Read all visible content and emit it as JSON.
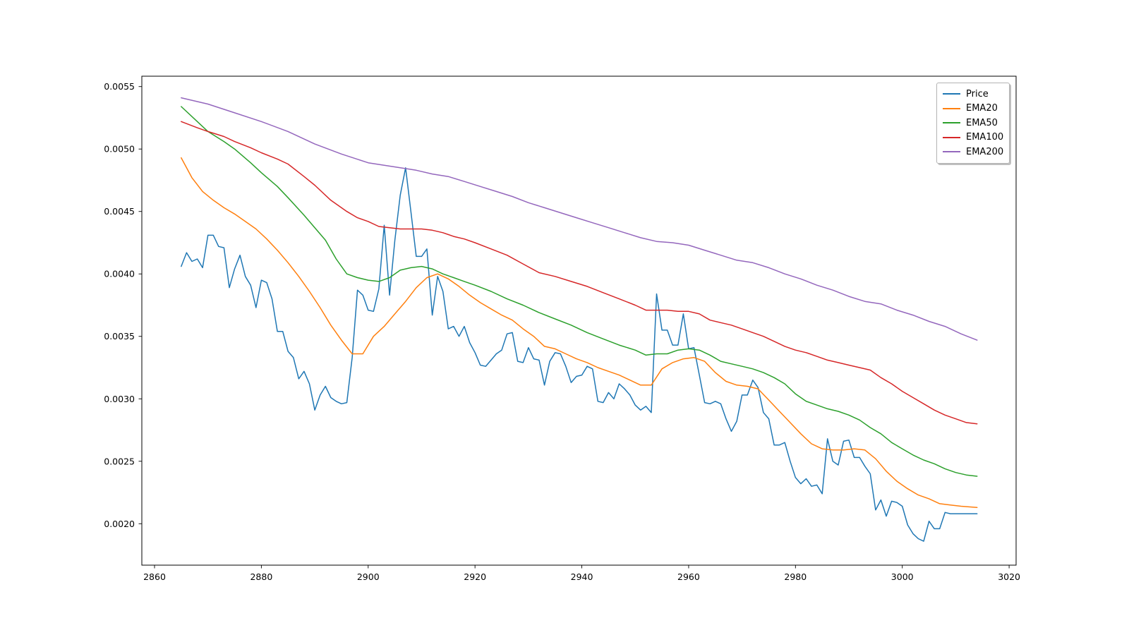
{
  "figure": {
    "background": "#ffffff",
    "axes": {
      "x_tick_labels": [
        "2860",
        "2880",
        "2900",
        "2920",
        "2940",
        "2960",
        "2980",
        "3000",
        "3020"
      ],
      "x_ticks": [
        2860,
        2880,
        2900,
        2920,
        2940,
        2960,
        2980,
        3000,
        3020
      ],
      "y_tick_labels": [
        "0.0020",
        "0.0025",
        "0.0030",
        "0.0035",
        "0.0040",
        "0.0045",
        "0.0050",
        "0.0055"
      ],
      "y_ticks": [
        0.002,
        0.0025,
        0.003,
        0.0035,
        0.004,
        0.0045,
        0.005,
        0.0055
      ],
      "grid": "off",
      "spine_color": "#000000"
    },
    "legend": {
      "position": "upper right",
      "entries": [
        {
          "label": "Price",
          "color": "#1f77b4"
        },
        {
          "label": "EMA20",
          "color": "#ff7f0e"
        },
        {
          "label": "EMA50",
          "color": "#2ca02c"
        },
        {
          "label": "EMA100",
          "color": "#d62728"
        },
        {
          "label": "EMA200",
          "color": "#9467bd"
        }
      ]
    }
  },
  "chart_data": {
    "type": "line",
    "title": "",
    "xlabel": "",
    "ylabel": "",
    "xlim": [
      2857.6,
      3021.4
    ],
    "ylim": [
      0.00167,
      0.005583
    ],
    "legend_position": "upper right",
    "grid": false,
    "series": [
      {
        "name": "Price",
        "color": "#1f77b4",
        "x_start": 2865,
        "x_step": 1,
        "values": [
          0.00406,
          0.00417,
          0.0041,
          0.00412,
          0.00405,
          0.00431,
          0.00431,
          0.00422,
          0.00421,
          0.00389,
          0.00404,
          0.00415,
          0.00398,
          0.00391,
          0.00373,
          0.00395,
          0.00393,
          0.0038,
          0.00354,
          0.00354,
          0.00338,
          0.00333,
          0.00316,
          0.00322,
          0.00312,
          0.00291,
          0.00303,
          0.0031,
          0.00301,
          0.00298,
          0.00296,
          0.00297,
          0.00333,
          0.00387,
          0.00383,
          0.00371,
          0.0037,
          0.00388,
          0.00439,
          0.00383,
          0.00427,
          0.00463,
          0.00485,
          0.0045,
          0.00414,
          0.00414,
          0.0042,
          0.00367,
          0.00398,
          0.00386,
          0.00356,
          0.00358,
          0.0035,
          0.00358,
          0.00345,
          0.00337,
          0.00327,
          0.00326,
          0.00331,
          0.00336,
          0.00339,
          0.00352,
          0.00353,
          0.0033,
          0.00329,
          0.00341,
          0.00332,
          0.00331,
          0.00311,
          0.0033,
          0.00337,
          0.00336,
          0.00326,
          0.00313,
          0.00318,
          0.00319,
          0.00326,
          0.00324,
          0.00298,
          0.00297,
          0.00305,
          0.003,
          0.00312,
          0.00308,
          0.00303,
          0.00295,
          0.00291,
          0.00294,
          0.00289,
          0.00384,
          0.00355,
          0.00355,
          0.00343,
          0.00343,
          0.00368,
          0.0034,
          0.00341,
          0.00319,
          0.00297,
          0.00296,
          0.00298,
          0.00296,
          0.00284,
          0.00274,
          0.00282,
          0.00303,
          0.00303,
          0.00315,
          0.00309,
          0.00289,
          0.00284,
          0.00263,
          0.00263,
          0.00265,
          0.0025,
          0.00237,
          0.00232,
          0.00236,
          0.0023,
          0.00231,
          0.00224,
          0.00268,
          0.0025,
          0.00247,
          0.00266,
          0.00267,
          0.00253,
          0.00253,
          0.00246,
          0.0024,
          0.00211,
          0.00219,
          0.00206,
          0.00218,
          0.00217,
          0.00214,
          0.00199,
          0.00192,
          0.00188,
          0.00186,
          0.00202,
          0.00196,
          0.00196,
          0.00209,
          0.00208,
          0.00208,
          0.00208,
          0.00208,
          0.00208,
          0.00208
        ]
      },
      {
        "name": "EMA20",
        "color": "#ff7f0e",
        "x": [
          2865,
          2867,
          2869,
          2871,
          2873,
          2875,
          2877,
          2879,
          2881,
          2883,
          2885,
          2887,
          2889,
          2891,
          2893,
          2895,
          2897,
          2899,
          2901,
          2903,
          2905,
          2907,
          2909,
          2911,
          2913,
          2915,
          2917,
          2919,
          2921,
          2923,
          2925,
          2927,
          2929,
          2931,
          2933,
          2935,
          2937,
          2939,
          2941,
          2943,
          2945,
          2947,
          2949,
          2951,
          2953,
          2955,
          2957,
          2959,
          2961,
          2963,
          2965,
          2967,
          2969,
          2971,
          2973,
          2975,
          2977,
          2979,
          2981,
          2983,
          2985,
          2987,
          2989,
          2991,
          2993,
          2995,
          2997,
          2999,
          3001,
          3003,
          3005,
          3007,
          3009,
          3011,
          3014
        ],
        "values": [
          0.00493,
          0.00477,
          0.00466,
          0.00459,
          0.00453,
          0.00448,
          0.00442,
          0.00436,
          0.00428,
          0.00419,
          0.00409,
          0.00398,
          0.00386,
          0.00373,
          0.00359,
          0.00347,
          0.00336,
          0.00336,
          0.0035,
          0.00358,
          0.00368,
          0.00378,
          0.00389,
          0.00397,
          0.004,
          0.00396,
          0.0039,
          0.00383,
          0.00377,
          0.00372,
          0.00367,
          0.00363,
          0.00356,
          0.0035,
          0.00342,
          0.0034,
          0.00336,
          0.00332,
          0.00329,
          0.00325,
          0.00322,
          0.00319,
          0.00315,
          0.00311,
          0.00311,
          0.00324,
          0.00329,
          0.00332,
          0.00333,
          0.0033,
          0.00321,
          0.00314,
          0.00311,
          0.0031,
          0.00308,
          0.00299,
          0.0029,
          0.00281,
          0.00272,
          0.00264,
          0.0026,
          0.00259,
          0.00259,
          0.0026,
          0.00259,
          0.00252,
          0.00242,
          0.00234,
          0.00228,
          0.00223,
          0.0022,
          0.00216,
          0.00215,
          0.00214,
          0.00213
        ]
      },
      {
        "name": "EMA50",
        "color": "#2ca02c",
        "x": [
          2865,
          2868,
          2870,
          2873,
          2875,
          2878,
          2880,
          2883,
          2885,
          2888,
          2890,
          2892,
          2894,
          2896,
          2898,
          2900,
          2902,
          2904,
          2906,
          2908,
          2910,
          2912,
          2914,
          2916,
          2918,
          2920,
          2923,
          2926,
          2929,
          2932,
          2935,
          2938,
          2941,
          2944,
          2947,
          2950,
          2952,
          2954,
          2956,
          2958,
          2960,
          2962,
          2964,
          2966,
          2968,
          2970,
          2972,
          2974,
          2976,
          2978,
          2980,
          2982,
          2984,
          2986,
          2988,
          2990,
          2992,
          2994,
          2996,
          2998,
          3000,
          3002,
          3004,
          3006,
          3008,
          3010,
          3012,
          3014
        ],
        "values": [
          0.00534,
          0.00522,
          0.00514,
          0.00506,
          0.005,
          0.00489,
          0.00481,
          0.0047,
          0.00461,
          0.00447,
          0.00437,
          0.00427,
          0.00412,
          0.004,
          0.00397,
          0.00395,
          0.00394,
          0.00397,
          0.00403,
          0.00405,
          0.00406,
          0.00404,
          0.004,
          0.00397,
          0.00394,
          0.00391,
          0.00386,
          0.0038,
          0.00375,
          0.00369,
          0.00364,
          0.00359,
          0.00353,
          0.00348,
          0.00343,
          0.00339,
          0.00335,
          0.00336,
          0.00336,
          0.00339,
          0.0034,
          0.00339,
          0.00335,
          0.0033,
          0.00328,
          0.00326,
          0.00324,
          0.00321,
          0.00317,
          0.00312,
          0.00304,
          0.00298,
          0.00295,
          0.00292,
          0.0029,
          0.00287,
          0.00283,
          0.00277,
          0.00272,
          0.00265,
          0.0026,
          0.00255,
          0.00251,
          0.00248,
          0.00244,
          0.00241,
          0.00239,
          0.00238
        ]
      },
      {
        "name": "EMA100",
        "color": "#d62728",
        "x": [
          2865,
          2868,
          2870,
          2873,
          2875,
          2878,
          2880,
          2883,
          2885,
          2888,
          2890,
          2893,
          2896,
          2898,
          2900,
          2902,
          2904,
          2906,
          2908,
          2910,
          2912,
          2914,
          2916,
          2918,
          2920,
          2923,
          2926,
          2929,
          2932,
          2935,
          2938,
          2941,
          2944,
          2947,
          2950,
          2952,
          2954,
          2956,
          2958,
          2960,
          2962,
          2964,
          2966,
          2968,
          2970,
          2972,
          2974,
          2976,
          2978,
          2980,
          2982,
          2984,
          2986,
          2988,
          2990,
          2992,
          2994,
          2996,
          2998,
          3000,
          3002,
          3004,
          3006,
          3008,
          3010,
          3012,
          3014
        ],
        "values": [
          0.00522,
          0.00517,
          0.00514,
          0.0051,
          0.00506,
          0.00501,
          0.00497,
          0.00492,
          0.00488,
          0.00478,
          0.00471,
          0.00459,
          0.0045,
          0.00445,
          0.00442,
          0.00438,
          0.00437,
          0.00436,
          0.00436,
          0.00436,
          0.00435,
          0.00433,
          0.0043,
          0.00428,
          0.00425,
          0.0042,
          0.00415,
          0.00408,
          0.00401,
          0.00398,
          0.00394,
          0.0039,
          0.00385,
          0.0038,
          0.00375,
          0.00371,
          0.00371,
          0.00371,
          0.0037,
          0.0037,
          0.00368,
          0.00363,
          0.00361,
          0.00359,
          0.00356,
          0.00353,
          0.0035,
          0.00346,
          0.00342,
          0.00339,
          0.00337,
          0.00334,
          0.00331,
          0.00329,
          0.00327,
          0.00325,
          0.00323,
          0.00317,
          0.00312,
          0.00306,
          0.00301,
          0.00296,
          0.00291,
          0.00287,
          0.00284,
          0.00281,
          0.0028
        ]
      },
      {
        "name": "EMA200",
        "color": "#9467bd",
        "x": [
          2865,
          2870,
          2875,
          2880,
          2885,
          2890,
          2895,
          2900,
          2903,
          2906,
          2909,
          2912,
          2915,
          2918,
          2921,
          2924,
          2927,
          2930,
          2933,
          2936,
          2939,
          2942,
          2945,
          2948,
          2951,
          2954,
          2957,
          2960,
          2963,
          2966,
          2969,
          2972,
          2975,
          2978,
          2981,
          2984,
          2987,
          2990,
          2993,
          2996,
          2999,
          3002,
          3005,
          3008,
          3011,
          3014
        ],
        "values": [
          0.00541,
          0.00536,
          0.00529,
          0.00522,
          0.00514,
          0.00504,
          0.00496,
          0.00489,
          0.00487,
          0.00485,
          0.00483,
          0.0048,
          0.00478,
          0.00474,
          0.0047,
          0.00466,
          0.00462,
          0.00457,
          0.00453,
          0.00449,
          0.00445,
          0.00441,
          0.00437,
          0.00433,
          0.00429,
          0.00426,
          0.00425,
          0.00423,
          0.00419,
          0.00415,
          0.00411,
          0.00409,
          0.00405,
          0.004,
          0.00396,
          0.00391,
          0.00387,
          0.00382,
          0.00378,
          0.00376,
          0.00371,
          0.00367,
          0.00362,
          0.00358,
          0.00352,
          0.00347
        ]
      }
    ]
  }
}
